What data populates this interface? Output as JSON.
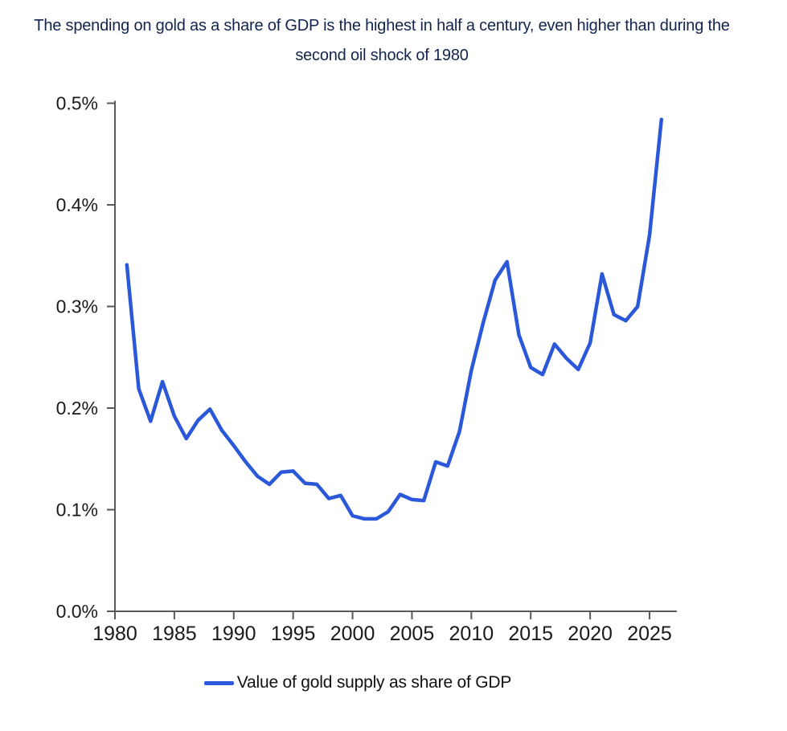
{
  "page": {
    "background": "#ffffff"
  },
  "chart_data": {
    "type": "line",
    "title": "The spending on gold as a share of GDP is the highest in half a century, even higher than during the second oil shock of 1980",
    "title_lines": [
      "The spending on gold as a share of GDP is the highest in half a century, even higher than during the",
      "second oil shock of 1980"
    ],
    "xlabel": "",
    "ylabel": "",
    "xlim": [
      1980,
      2027.3
    ],
    "ylim": [
      0,
      0.5
    ],
    "grid": false,
    "legend_position": "bottom",
    "x_ticks": [
      1980,
      1985,
      1990,
      1995,
      2000,
      2005,
      2010,
      2015,
      2020,
      2025
    ],
    "x_tick_labels": [
      "1980",
      "1985",
      "1990",
      "1995",
      "2000",
      "2005",
      "2010",
      "2015",
      "2020",
      "2025"
    ],
    "y_ticks": [
      0.0,
      0.1,
      0.2,
      0.3,
      0.4,
      0.5
    ],
    "y_tick_labels": [
      "0.0%",
      "0.1%",
      "0.2%",
      "0.3%",
      "0.4%",
      "0.5%"
    ],
    "series": [
      {
        "name": "Value of gold supply as share of GDP",
        "color": "#2B58D9",
        "x": [
          1981,
          1982,
          1983,
          1984,
          1985,
          1986,
          1987,
          1988,
          1989,
          1990,
          1991,
          1992,
          1993,
          1994,
          1995,
          1996,
          1997,
          1998,
          1999,
          2000,
          2001,
          2002,
          2003,
          2004,
          2005,
          2006,
          2007,
          2008,
          2009,
          2010,
          2011,
          2012,
          2013,
          2014,
          2015,
          2016,
          2017,
          2018,
          2019,
          2020,
          2021,
          2022,
          2023,
          2024,
          2025,
          2026
        ],
        "values": [
          0.341,
          0.219,
          0.187,
          0.226,
          0.192,
          0.17,
          0.188,
          0.199,
          0.178,
          0.163,
          0.147,
          0.133,
          0.125,
          0.137,
          0.138,
          0.126,
          0.125,
          0.111,
          0.114,
          0.094,
          0.091,
          0.091,
          0.098,
          0.115,
          0.11,
          0.109,
          0.147,
          0.143,
          0.177,
          0.237,
          0.284,
          0.326,
          0.344,
          0.272,
          0.24,
          0.233,
          0.263,
          0.249,
          0.238,
          0.264,
          0.332,
          0.292,
          0.286,
          0.3,
          0.37,
          0.484
        ]
      }
    ],
    "colors": {
      "line": "#2B58D9",
      "axis": "#595959",
      "tick_labels": "#1A1A1A",
      "title": "#13254C",
      "legend_text": "#111111"
    }
  }
}
